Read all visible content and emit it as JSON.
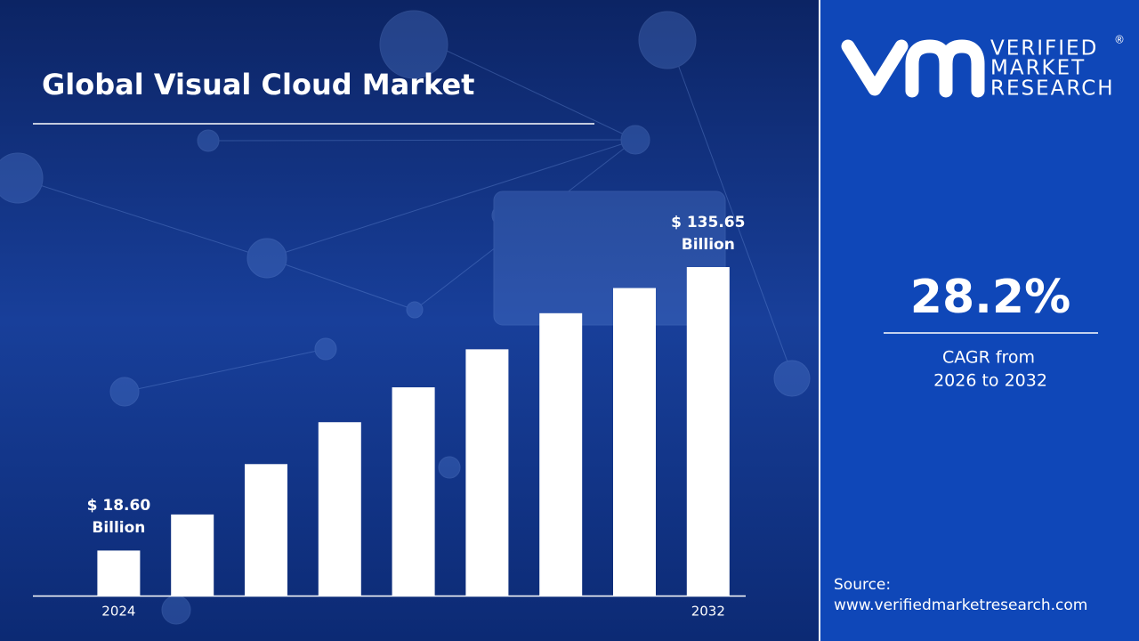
{
  "chart_data": {
    "type": "bar",
    "title": "Global Visual Cloud Market",
    "categories": [
      "2024",
      null,
      null,
      null,
      null,
      null,
      null,
      null,
      "2032"
    ],
    "values": [
      18.6,
      33.5,
      54.3,
      71.6,
      86.0,
      101.7,
      116.6,
      127.0,
      135.65
    ],
    "value_labels": [
      "$ 18.60 Billion",
      null,
      null,
      null,
      null,
      null,
      null,
      null,
      "$ 135.65 Billion"
    ],
    "color": "#ffffff"
  },
  "brand": {
    "line1": "VERIFIED",
    "line2": "MARKET",
    "line3": "RESEARCH",
    "mark": "®"
  },
  "cagr": {
    "value": "28.2%",
    "label1": "CAGR from",
    "label2": "2026 to 2032"
  },
  "source": {
    "label": "Source:",
    "url": "www.verifiedmarketresearch.com"
  }
}
